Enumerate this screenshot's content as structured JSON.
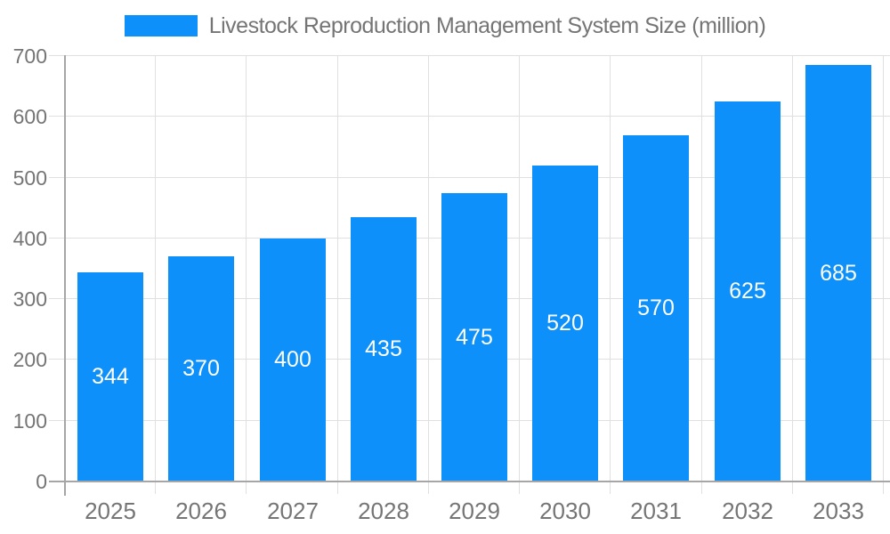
{
  "chart_data": {
    "type": "bar",
    "title": "Livestock Reproduction Management System Size (million)",
    "legend": [
      "Livestock Reproduction Management System Size (million)"
    ],
    "legend_position": "top-center",
    "categories": [
      "2025",
      "2026",
      "2027",
      "2028",
      "2029",
      "2030",
      "2031",
      "2032",
      "2033"
    ],
    "values": [
      344,
      370,
      400,
      435,
      475,
      520,
      570,
      625,
      685
    ],
    "series": [
      {
        "name": "Livestock Reproduction Management System Size (million)",
        "values": [
          344,
          370,
          400,
          435,
          475,
          520,
          570,
          625,
          685
        ]
      }
    ],
    "xlabel": "",
    "ylabel": "",
    "ylim": [
      0,
      700
    ],
    "yticks": [
      0,
      100,
      200,
      300,
      400,
      500,
      600,
      700
    ],
    "grid": true,
    "value_label_position": "inside-center"
  },
  "colors": {
    "bar": "#0e90fa",
    "grid": "#e0e0e0",
    "axis": "#a6a6a6",
    "tick_text": "#757575",
    "bar_label_text": "#ffffff",
    "background": "#ffffff"
  }
}
